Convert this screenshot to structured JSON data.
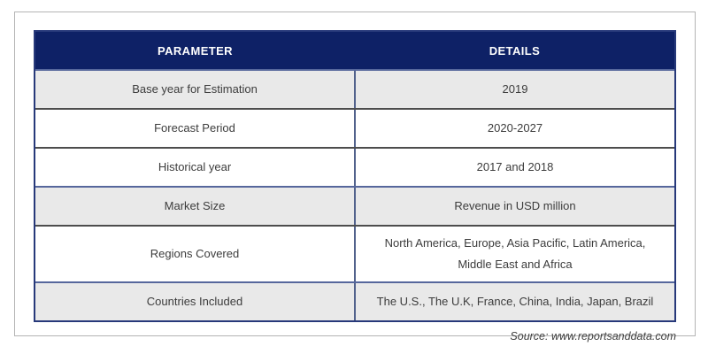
{
  "chart_data": {
    "type": "table",
    "columns": [
      "PARAMETER",
      "DETAILS"
    ],
    "rows": [
      [
        "Base year for Estimation",
        "2019"
      ],
      [
        "Forecast Period",
        "2020-2027"
      ],
      [
        "Historical year",
        "2017 and 2018"
      ],
      [
        "Market Size",
        "Revenue in USD million"
      ],
      [
        "Regions Covered",
        "North America, Europe, Asia Pacific, Latin America, Middle East and Africa"
      ],
      [
        "Countries Included",
        "The U.S., The  U.K, France, China, India, Japan, Brazil"
      ]
    ],
    "source": "Source: www.reportsanddata.com"
  },
  "colors": {
    "header_bg": "#0e2166",
    "header_text": "#ffffff",
    "shaded_row_bg": "#e9e9e9",
    "row_bg": "#ffffff",
    "column_divider": "#52628c",
    "row_separator": "#4d4d4d",
    "table_border": "#27397a",
    "card_border": "#b4b4b4",
    "body_text": "#3c3c3c"
  }
}
